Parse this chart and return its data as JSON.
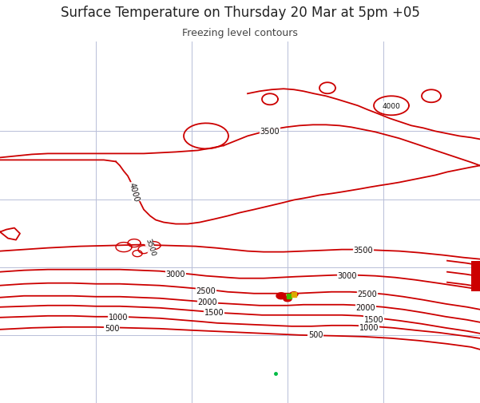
{
  "title": "Surface Temperature on Thursday 20 Mar at 5pm +05",
  "subtitle": "Freezing level contours",
  "bg_color": "#ccd4e8",
  "contour_color": "#cc0000",
  "grid_color": "#b8bfd8",
  "title_fontsize": 12,
  "subtitle_fontsize": 9,
  "title_color": "#222222",
  "subtitle_color": "#444444",
  "label_fontsize": 7,
  "contour_lw": 1.3
}
